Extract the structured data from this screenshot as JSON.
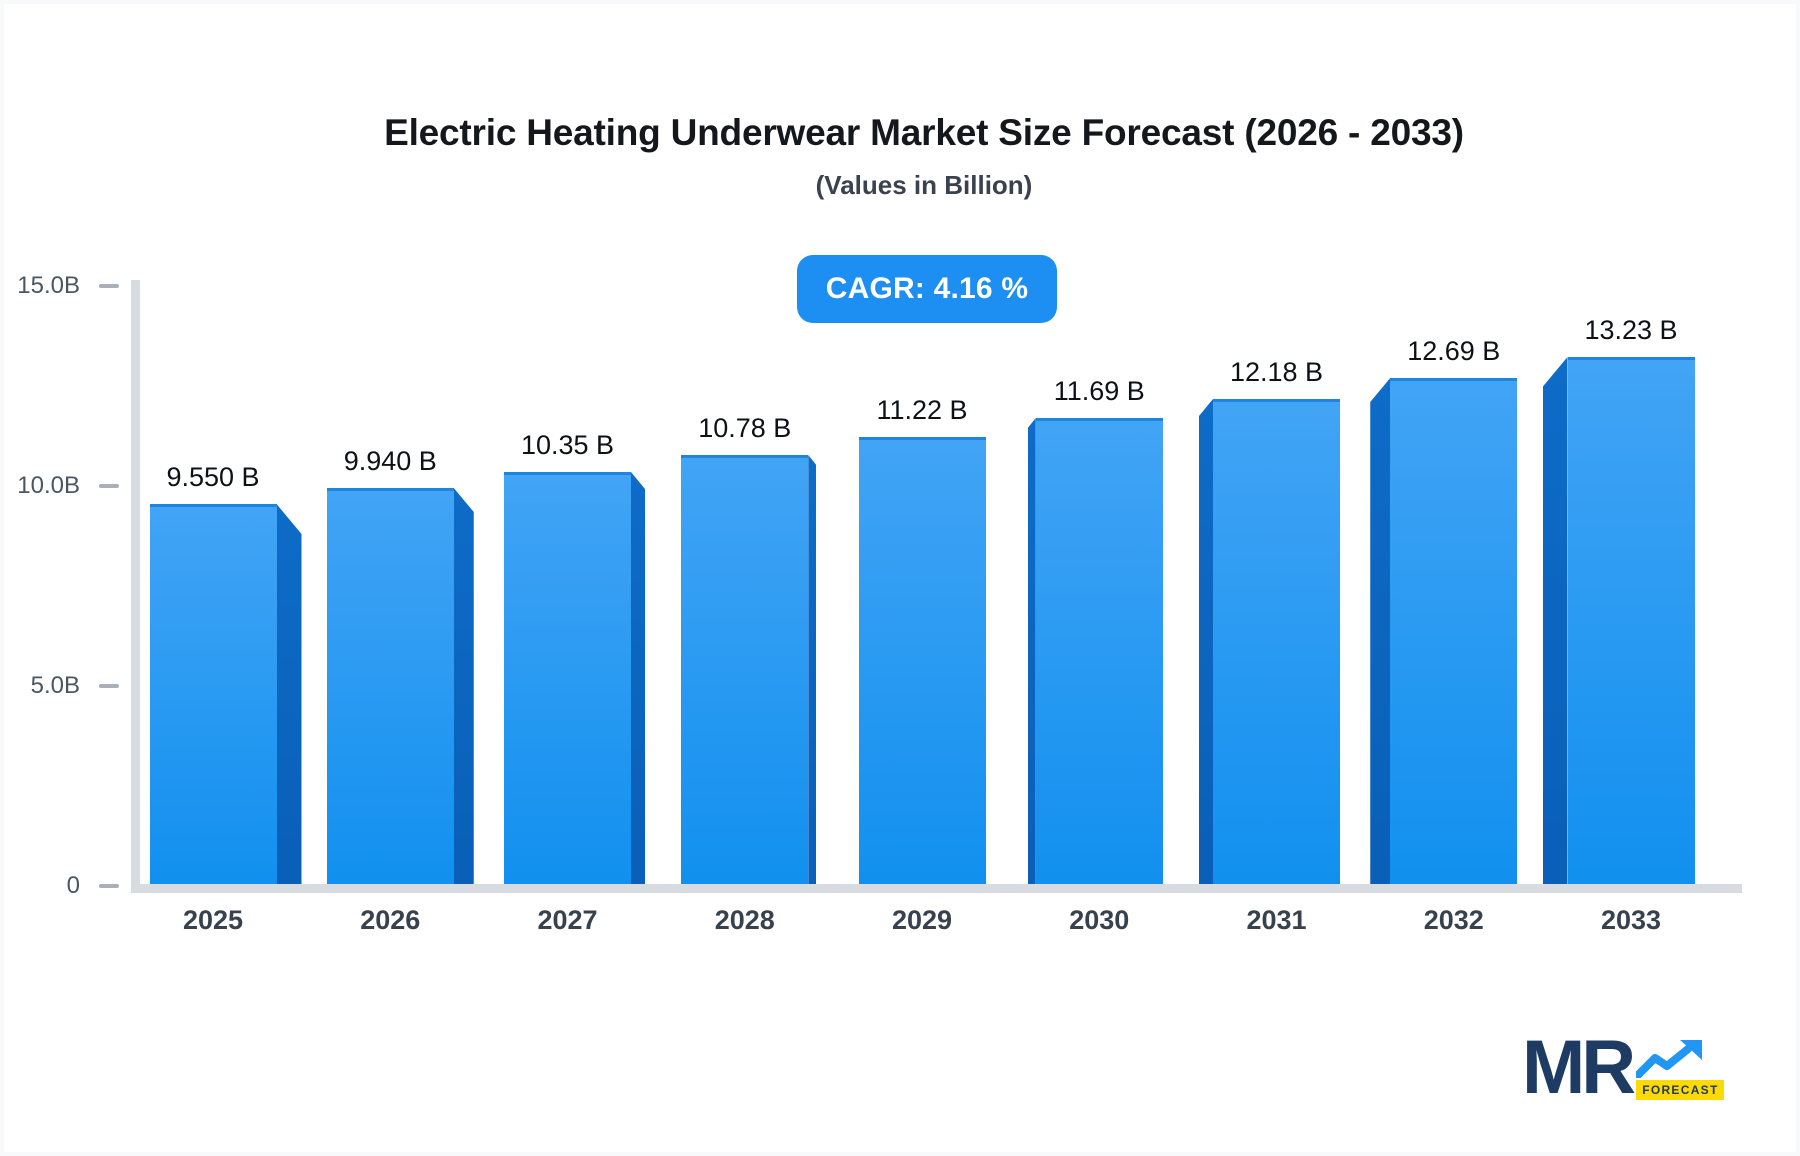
{
  "header": {
    "title": "Electric Heating Underwear Market Size Forecast (2026 - 2033)",
    "subtitle": "(Values in Billion)",
    "cagr_label": "CAGR: 4.16 %"
  },
  "chart_data": {
    "type": "bar",
    "title": "Electric Heating Underwear Market Size Forecast (2026 - 2033)",
    "subtitle": "(Values in Billion)",
    "cagr": "4.16 %",
    "categories": [
      "2025",
      "2026",
      "2027",
      "2028",
      "2029",
      "2030",
      "2031",
      "2032",
      "2033"
    ],
    "values": [
      9.55,
      9.94,
      10.35,
      10.78,
      11.22,
      11.69,
      12.18,
      12.69,
      13.23
    ],
    "value_labels": [
      "9.550 B",
      "9.940 B",
      "10.35 B",
      "10.78 B",
      "11.22 B",
      "11.69 B",
      "12.18 B",
      "12.69 B",
      "13.23 B"
    ],
    "xlabel": "",
    "ylabel": "",
    "ylim": [
      0,
      15
    ],
    "grid": false,
    "legend": false,
    "y_axis": {
      "ticks": [
        {
          "label": "15.0B",
          "value": 15
        },
        {
          "label": "10.0B",
          "value": 10
        },
        {
          "label": "5.0B",
          "value": 5
        },
        {
          "label": "0",
          "value": 0
        }
      ]
    }
  },
  "logo": {
    "brand": "MR",
    "sub": "FORECAST"
  },
  "colors": {
    "bar_face_top": "#42a4f5",
    "bar_face_bottom": "#1190ef",
    "bar_face_edge": "#1f86e0",
    "bar_side_top": "#0d6cc8",
    "bar_side_bottom": "#0a5fb7",
    "axis": "#d8dbdf",
    "tick": "#a9b0ba",
    "badge_bg": "#1d8ef2",
    "badge_text": "#ffffff",
    "title": "#14181d",
    "subtitle": "#39424e",
    "value_label": "#0e1216",
    "axis_label": "#4b5663",
    "category_label": "#37424e",
    "logo_navy": "#1d3b63",
    "logo_blue": "#2196f3",
    "logo_yellow": "#ffd903",
    "background": "#ffffff"
  }
}
